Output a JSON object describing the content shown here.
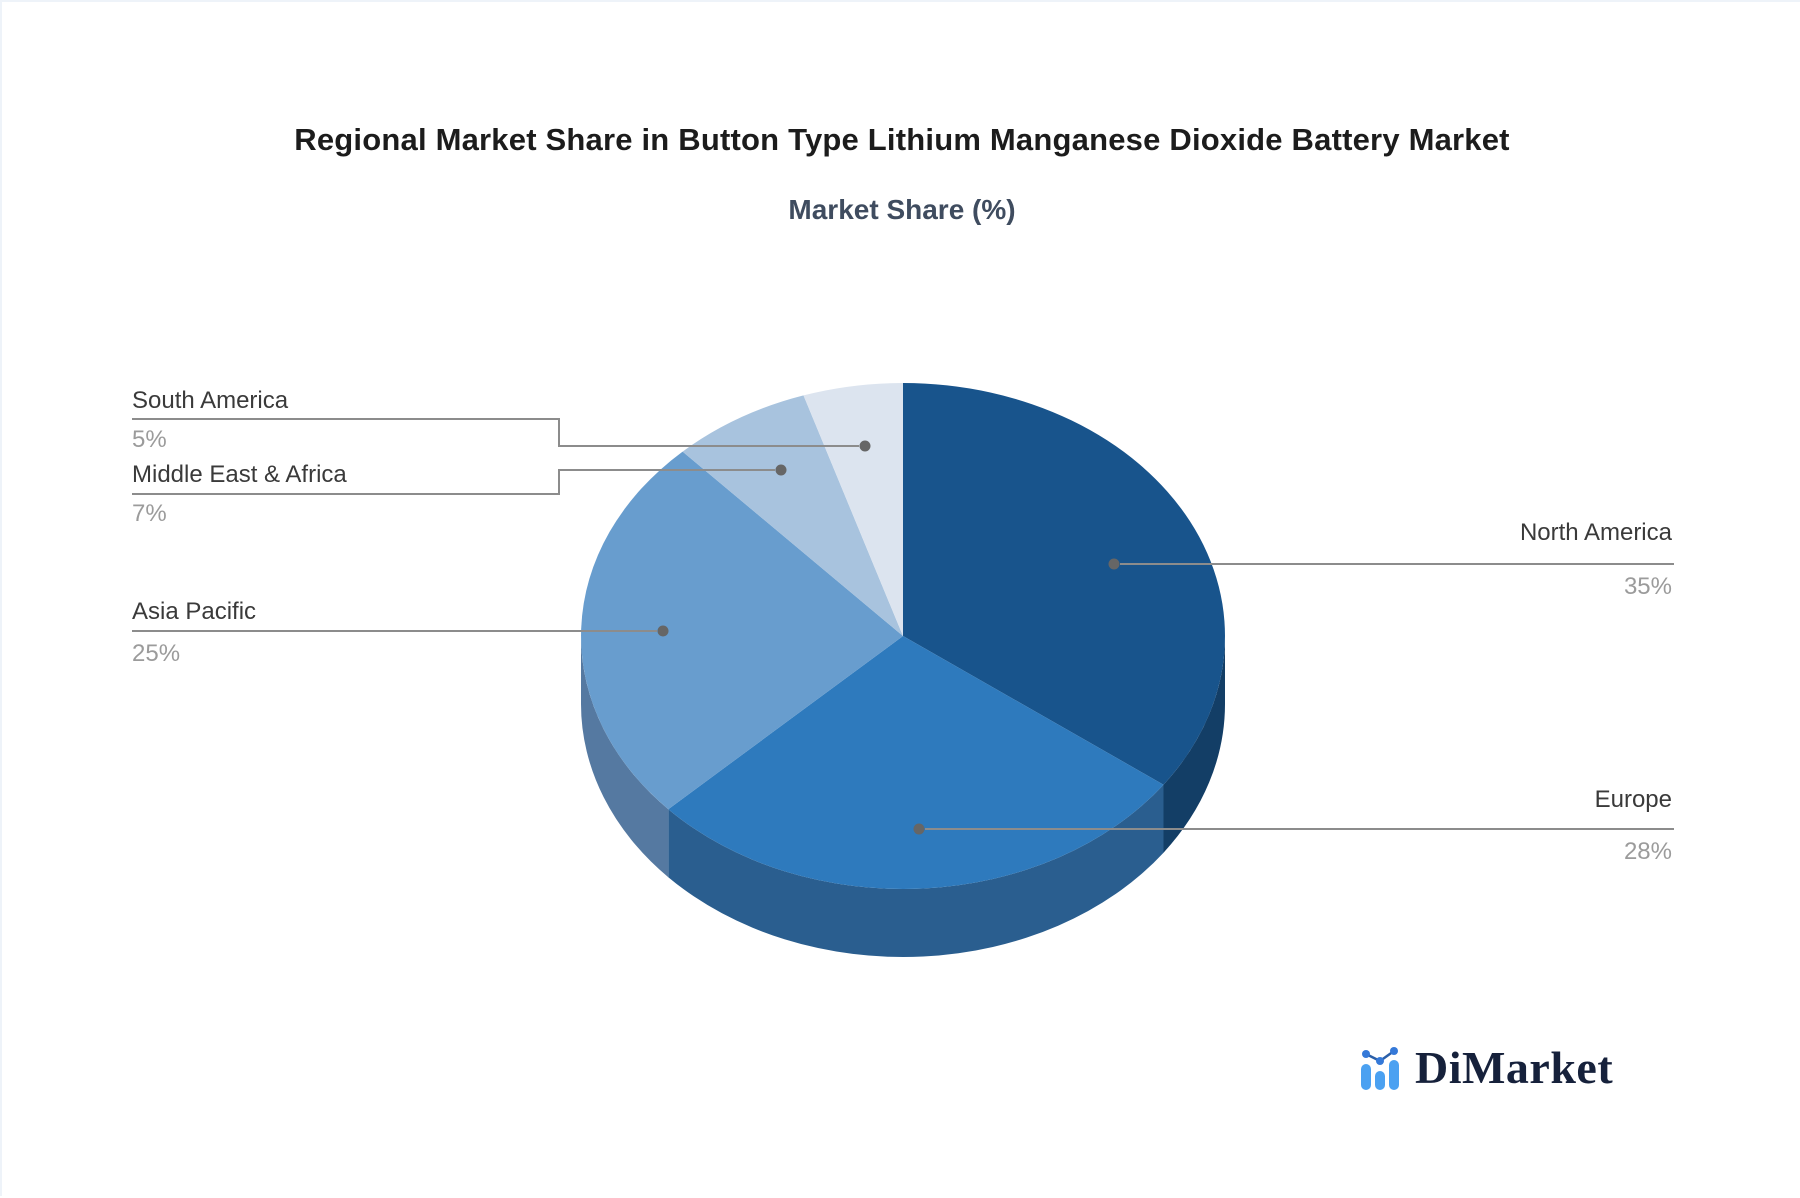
{
  "title": "Regional Market Share in Button Type Lithium Manganese Dioxide Battery Market",
  "subtitle": "Market Share (%)",
  "chart_data": {
    "type": "pie",
    "style": "3d",
    "title": "Regional Market Share in Button Type Lithium Manganese Dioxide Battery Market",
    "subtitle": "Market Share (%)",
    "unit": "%",
    "start_angle_deg": 0,
    "direction": "clockwise",
    "legend_position": "callout-labels",
    "slices": [
      {
        "label": "North America",
        "value": 35,
        "pct_text": "35%",
        "color": "#18548C",
        "side_color": "#133E66"
      },
      {
        "label": "Europe",
        "value": 28,
        "pct_text": "28%",
        "color": "#2E7ABD",
        "side_color": "#2A5E8F"
      },
      {
        "label": "Asia Pacific",
        "value": 25,
        "pct_text": "25%",
        "color": "#689DCE",
        "side_color": "#5579A1"
      },
      {
        "label": "Middle East & Africa",
        "value": 7,
        "pct_text": "7%",
        "color": "#A8C3DE",
        "side_color": "#8FA9C2"
      },
      {
        "label": "South America",
        "value": 5,
        "pct_text": "5%",
        "color": "#DCE4EF",
        "side_color": "#BCC8D9"
      }
    ],
    "callout_line_color": "#8c8c8c",
    "callout_dot_color": "#666666",
    "label_text_color": "#3a3a3a",
    "pct_text_color": "#9b9b9b"
  },
  "brand": {
    "name": "DiMarket",
    "icon": "bar-line-chart-logo-icon",
    "text_color": "#16213b",
    "bar_color": "#4ba1f1",
    "dot_color": "#3579d8",
    "line_color": "#2b5fa8"
  }
}
